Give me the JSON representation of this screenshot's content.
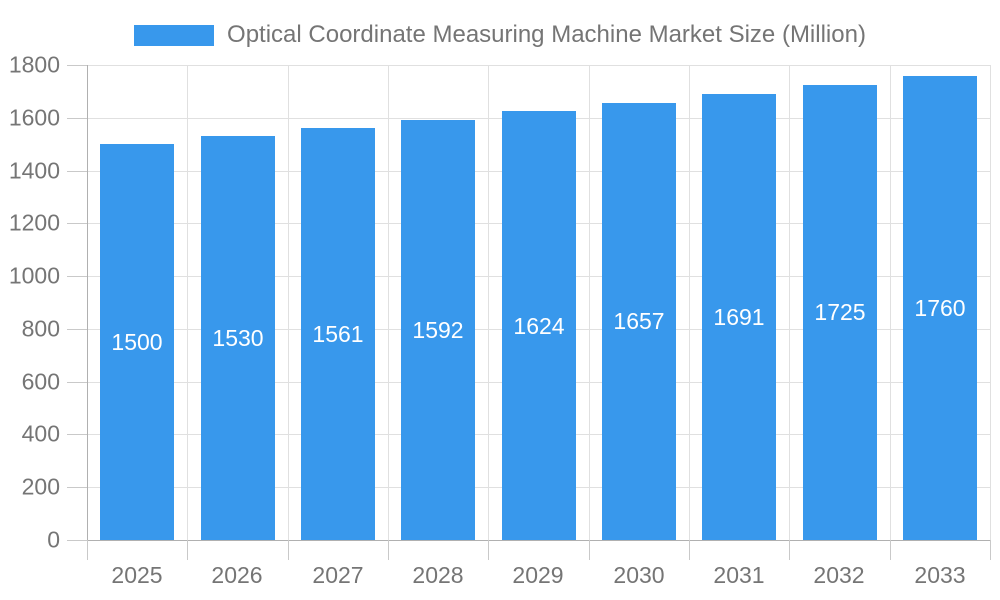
{
  "chart_data": {
    "type": "bar",
    "title": "Optical Coordinate Measuring Machine Market Size (Million)",
    "categories": [
      "2025",
      "2026",
      "2027",
      "2028",
      "2029",
      "2030",
      "2031",
      "2032",
      "2033"
    ],
    "values": [
      1500,
      1530,
      1561,
      1592,
      1624,
      1657,
      1691,
      1725,
      1760
    ],
    "xlabel": "",
    "ylabel": "",
    "ylim": [
      0,
      1800
    ],
    "yticks": [
      0,
      200,
      400,
      600,
      800,
      1000,
      1200,
      1400,
      1600,
      1800
    ],
    "grid": true,
    "legend_position": "top",
    "bar_labels_shown": true,
    "colors": {
      "bar": "#3898EC",
      "bar_label": "#FFFFFF",
      "grid": "#E0E0E0",
      "axis": "#B0B0B0",
      "tick": "#C9C9C9",
      "text": "#757575"
    }
  }
}
